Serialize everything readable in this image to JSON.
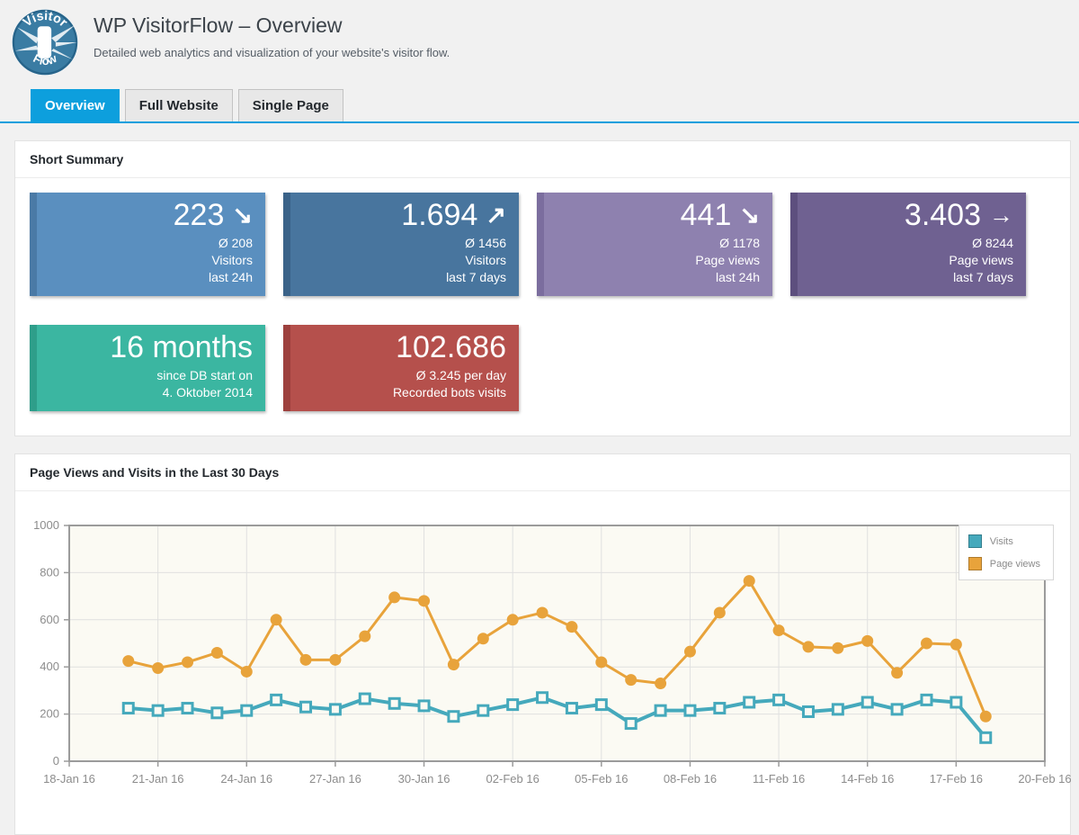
{
  "accent_color": "#0d9fdd",
  "header": {
    "title": "WP VisitorFlow – Overview",
    "subtitle": "Detailed web analytics and visualization of your website's visitor flow.",
    "logo": {
      "top_text": "Visitor",
      "bottom_text": "Flow"
    }
  },
  "tabs": [
    {
      "label": "Overview",
      "active": true
    },
    {
      "label": "Full Website",
      "active": false
    },
    {
      "label": "Single Page",
      "active": false
    }
  ],
  "summary": {
    "title": "Short Summary",
    "cards": [
      {
        "value": "223",
        "trend_icon": "arrow-down-right",
        "lines": [
          "Ø 208",
          "Visitors",
          "last 24h"
        ],
        "color": "#5a8fbf",
        "stripe": "#4a7aa6"
      },
      {
        "value": "1.694",
        "trend_icon": "arrow-up-right",
        "lines": [
          "Ø 1456",
          "Visitors",
          "last 7 days"
        ],
        "color": "#48759e",
        "stripe": "#3a6288"
      },
      {
        "value": "441",
        "trend_icon": "arrow-down-right",
        "lines": [
          "Ø 1178",
          "Page views",
          "last 24h"
        ],
        "color": "#8e81af",
        "stripe": "#7b6d9e"
      },
      {
        "value": "3.403",
        "trend_icon": "arrow-right",
        "lines": [
          "Ø 8244",
          "Page views",
          "last 7 days"
        ],
        "color": "#6f6191",
        "stripe": "#5d4f7e"
      },
      {
        "value": "16 months",
        "trend_icon": null,
        "lines": [
          "since DB start on",
          "4. Oktober 2014"
        ],
        "color": "#3bb6a1",
        "stripe": "#2e9e8a"
      },
      {
        "value": "102.686",
        "trend_icon": null,
        "lines": [
          "Ø 3.245 per day",
          "Recorded bots visits"
        ],
        "color": "#b5504c",
        "stripe": "#9d403d"
      }
    ]
  },
  "chart_panel": {
    "title": "Page Views and Visits in the Last 30 Days"
  },
  "chart_data": {
    "type": "line",
    "title": "Page Views and Visits in the Last 30 Days",
    "x": [
      "2016-01-20",
      "2016-01-21",
      "2016-01-22",
      "2016-01-23",
      "2016-01-24",
      "2016-01-25",
      "2016-01-26",
      "2016-01-27",
      "2016-01-28",
      "2016-01-29",
      "2016-01-30",
      "2016-01-31",
      "2016-02-01",
      "2016-02-02",
      "2016-02-03",
      "2016-02-04",
      "2016-02-05",
      "2016-02-06",
      "2016-02-07",
      "2016-02-08",
      "2016-02-09",
      "2016-02-10",
      "2016-02-11",
      "2016-02-12",
      "2016-02-13",
      "2016-02-14",
      "2016-02-15",
      "2016-02-16",
      "2016-02-17",
      "2016-02-18"
    ],
    "series": [
      {
        "name": "Visits",
        "color": "#45a9bc",
        "marker": "square",
        "values": [
          225,
          215,
          225,
          205,
          215,
          260,
          230,
          220,
          265,
          245,
          235,
          190,
          215,
          240,
          270,
          225,
          240,
          160,
          215,
          215,
          225,
          250,
          260,
          210,
          220,
          250,
          220,
          260,
          250,
          100
        ]
      },
      {
        "name": "Page views",
        "color": "#e8a33b",
        "marker": "circle",
        "values": [
          425,
          395,
          420,
          460,
          380,
          600,
          430,
          430,
          530,
          695,
          680,
          410,
          520,
          600,
          630,
          570,
          420,
          345,
          330,
          465,
          630,
          765,
          555,
          485,
          480,
          510,
          375,
          500,
          495,
          190
        ]
      }
    ],
    "x_tick_labels": [
      "18-Jan 16",
      "21-Jan 16",
      "24-Jan 16",
      "27-Jan 16",
      "30-Jan 16",
      "02-Feb 16",
      "05-Feb 16",
      "08-Feb 16",
      "11-Feb 16",
      "14-Feb 16",
      "17-Feb 16",
      "20-Feb 16"
    ],
    "x_tick_step_days": 3,
    "x_range_days": 33,
    "data_start_day": 2,
    "y_ticks": [
      0,
      200,
      400,
      600,
      800,
      1000
    ],
    "ylim": [
      0,
      1000
    ],
    "grid": true,
    "legend": [
      "Visits",
      "Page views"
    ],
    "legend_position": "top-right",
    "plot_bg": "#fbfaf3",
    "axis_color": "#9b9b9b",
    "grid_color": "#e0e0e0",
    "label_color": "#8c8c8c"
  }
}
